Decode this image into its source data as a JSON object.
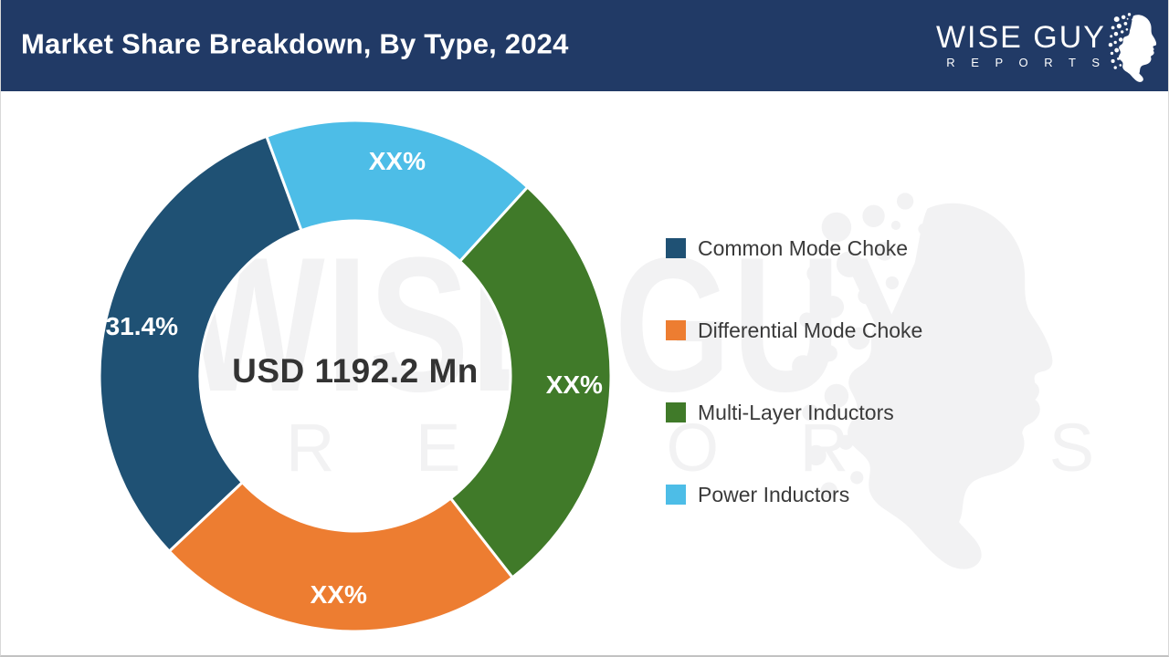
{
  "header": {
    "title": "Market Share Breakdown, By Type, 2024",
    "logo": {
      "wordmark": "WISE GUY",
      "subtext": "R E P O R T S"
    }
  },
  "watermark": {
    "line1": "WISE GUY",
    "line2": "R E P O R T S"
  },
  "colors": {
    "header_navy": "#213A66",
    "common_mode_choke": "#1F5174",
    "differential_mode_choke": "#ED7D31",
    "multi_layer_inductors": "#407A29",
    "power_inductors": "#4DBDE7",
    "slice_label_text": "#FFFFFF",
    "center_text": "#333333",
    "legend_text": "#3A3A3A",
    "watermark_gray": "#F2F2F3"
  },
  "chart_data": {
    "type": "pie",
    "donut": true,
    "title": "Market Share Breakdown, By Type, 2024",
    "center_label": "USD 1192.2 Mn",
    "legend_position": "right",
    "start_angle_deg": 110.3,
    "counterclockwise": true,
    "segments": [
      {
        "id": "common-mode-choke",
        "name": "Common Mode Choke",
        "label": "31.4%",
        "share_pct_est": 31.4,
        "value_shown": true,
        "color": "#1F5174"
      },
      {
        "id": "differential-mode-choke",
        "name": "Differential Mode Choke",
        "label": "XX%",
        "share_pct_est": 23.5,
        "value_shown": false,
        "color": "#ED7D31"
      },
      {
        "id": "multi-layer-inductors",
        "name": "Multi-Layer Inductors",
        "label": "XX%",
        "share_pct_est": 27.7,
        "value_shown": false,
        "color": "#407A29"
      },
      {
        "id": "power-inductors",
        "name": "Power Inductors",
        "label": "XX%",
        "share_pct_est": 17.4,
        "value_shown": false,
        "color": "#4DBDE7"
      }
    ]
  }
}
